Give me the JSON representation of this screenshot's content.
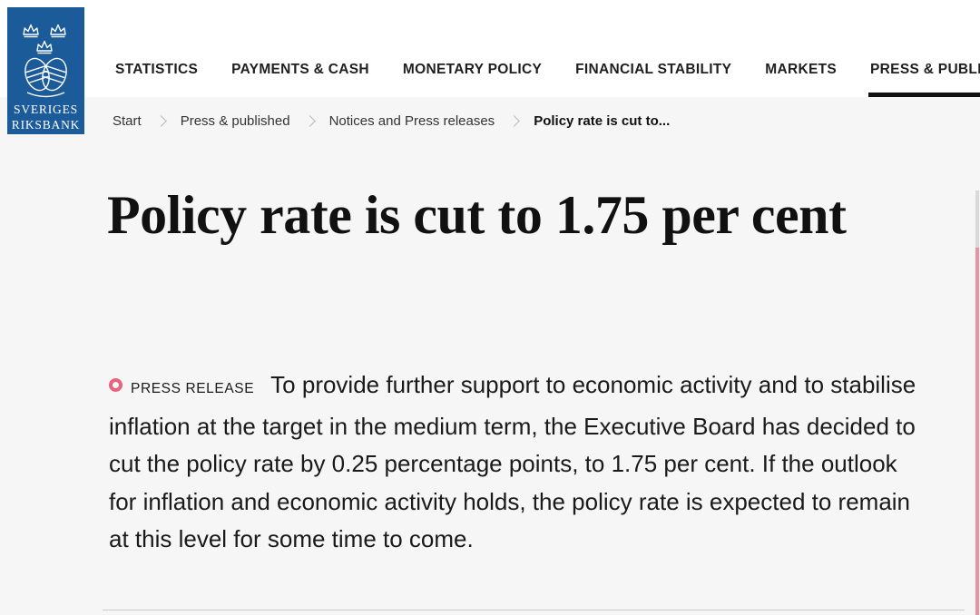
{
  "brand": {
    "name_line1": "SVERIGES",
    "name_line2": "RIKSBANK"
  },
  "nav": {
    "items": [
      {
        "label": "STATISTICS",
        "active": false
      },
      {
        "label": "PAYMENTS & CASH",
        "active": false
      },
      {
        "label": "MONETARY POLICY",
        "active": false
      },
      {
        "label": "FINANCIAL STABILITY",
        "active": false
      },
      {
        "label": "MARKETS",
        "active": false
      },
      {
        "label": "PRESS & PUBLISHED",
        "active": true
      }
    ]
  },
  "breadcrumb": {
    "items": [
      "Start",
      "Press & published",
      "Notices and Press releases",
      "Policy rate is cut to..."
    ]
  },
  "article": {
    "kicker": "PRESS RELEASE",
    "title": "Policy rate is cut to 1.75 per cent",
    "lead": "To provide further support to economic activity and to stabilise inflation at the target in the medium term, the Executive Board has decided to cut the policy rate by 0.25 percentage points, to 1.75 per cent. If the outlook for inflation and economic activity holds, the policy rate is expected to remain at this level for some time to come."
  },
  "colors": {
    "logo_blue": "#1c5b99",
    "accent_pink": "#e8637e",
    "page_bg": "#f6f6f6",
    "nav_underline": "#111111",
    "scrollbar_thumb_gray": "#d9d9d9",
    "scrollbar_track_pink": "#e594a2",
    "divider_gray": "#cccccc"
  }
}
